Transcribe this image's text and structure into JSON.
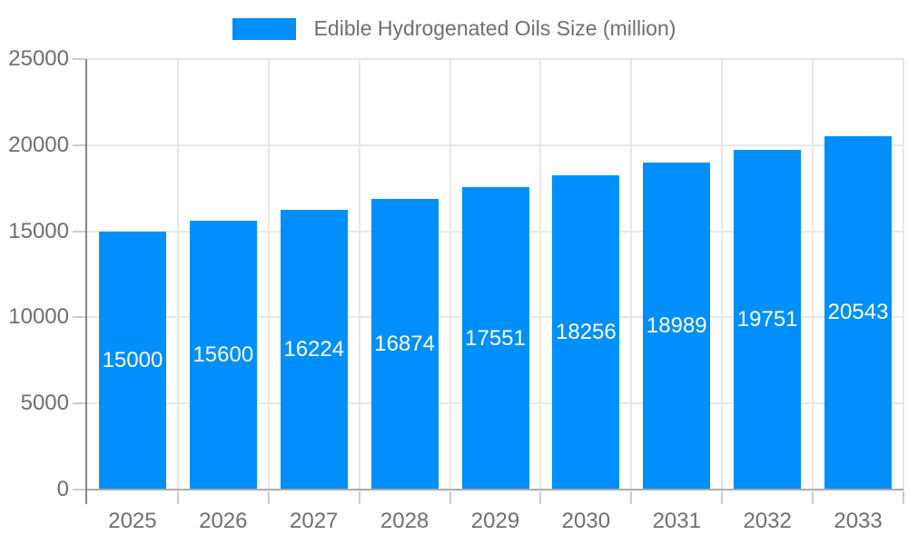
{
  "chart_data": {
    "type": "bar",
    "title": "Edible Hydrogenated Oils Size (million)",
    "categories": [
      "2025",
      "2026",
      "2027",
      "2028",
      "2029",
      "2030",
      "2031",
      "2032",
      "2033"
    ],
    "series": [
      {
        "name": "Edible Hydrogenated Oils Size (million)",
        "values": [
          15000,
          15600,
          16224,
          16874,
          17551,
          18256,
          18989,
          19751,
          20543
        ]
      }
    ],
    "xlabel": "",
    "ylabel": "",
    "ylim": [
      0,
      25000
    ],
    "ytick_step": 5000,
    "ytick_labels": [
      "0",
      "5000",
      "10000",
      "15000",
      "20000",
      "25000"
    ],
    "grid": true,
    "legend_position": "top",
    "value_labels": "inside-center",
    "colors": {
      "bar": "#008FFB",
      "label_text": "#6f6f6f",
      "value_text": "#ffffff",
      "grid_line": "#e8e8e8",
      "y_axis_line": "#858585",
      "x_axis_line": "#ababab",
      "tick": "#cccccc"
    }
  }
}
